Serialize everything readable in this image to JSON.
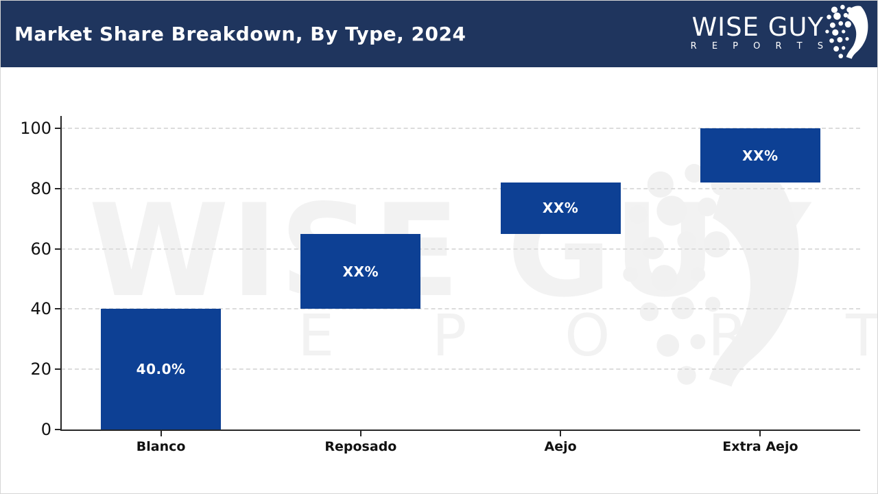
{
  "header": {
    "title": "Market Share Breakdown, By Type, 2024",
    "logo": {
      "line1": "WISE GUY",
      "line2": "R E P O R T S"
    }
  },
  "watermark": {
    "line1": "WISE GUY",
    "line2": "R E P O R T S"
  },
  "colors": {
    "header_background": "#1f355e",
    "bar_fill": "#0d4094",
    "bar_label": "#ffffff",
    "grid": "#dcdcdc",
    "axis": "#262626",
    "watermark": "#f2f2f2"
  },
  "chart_data": {
    "type": "bar",
    "subtype": "waterfall",
    "title": "Market Share Breakdown, By Type, 2024",
    "categories": [
      "Blanco",
      "Reposado",
      "Aejo",
      "Extra Aejo"
    ],
    "segments": [
      {
        "category": "Blanco",
        "start": 0,
        "end": 40,
        "label": "40.0%"
      },
      {
        "category": "Reposado",
        "start": 40,
        "end": 65,
        "label": "XX%"
      },
      {
        "category": "Aejo",
        "start": 65,
        "end": 82,
        "label": "XX%"
      },
      {
        "category": "Extra Aejo",
        "start": 82,
        "end": 100,
        "label": "XX%"
      }
    ],
    "ylim": [
      0,
      100
    ],
    "yticks": [
      0,
      20,
      40,
      60,
      80,
      100
    ],
    "xlabel": "",
    "ylabel": "",
    "grid": "horizontal-dashed",
    "legend": "none"
  }
}
